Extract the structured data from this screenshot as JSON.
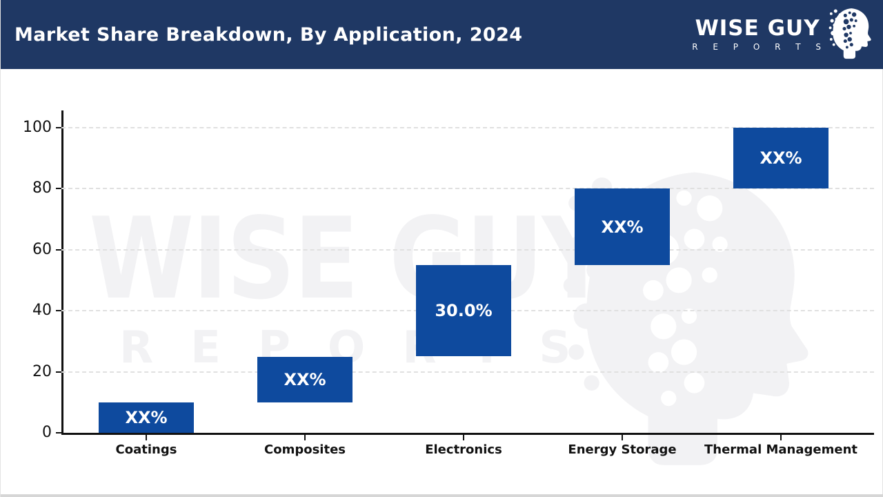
{
  "header": {
    "title": "Market Share Breakdown, By Application, 2024",
    "logo": {
      "line1": "WISE GUY",
      "line2": "R E P O R T S"
    }
  },
  "watermark": {
    "line1": "WISE GUY",
    "line2": "REPORTS"
  },
  "colors": {
    "header_bg": "#1f3864",
    "bar": "#0e4a9e",
    "grid": "#e0e0e0",
    "axis": "#111111",
    "watermark": "#f2f2f4",
    "bottom_strip": "#d6d6d6",
    "bar_label": "#ffffff"
  },
  "chart_data": {
    "type": "bar",
    "subtype": "floating-waterfall",
    "title": "Market Share Breakdown, By Application, 2024",
    "xlabel": "",
    "ylabel": "",
    "categories": [
      "Coatings",
      "Composites",
      "Electronics",
      "Energy Storage",
      "Thermal Management"
    ],
    "bars": [
      {
        "category": "Coatings",
        "start": 0,
        "end": 10,
        "label": "XX%"
      },
      {
        "category": "Composites",
        "start": 10,
        "end": 25,
        "label": "XX%"
      },
      {
        "category": "Electronics",
        "start": 25,
        "end": 55,
        "label": "30.0%"
      },
      {
        "category": "Energy Storage",
        "start": 55,
        "end": 80,
        "label": "XX%"
      },
      {
        "category": "Thermal Management",
        "start": 80,
        "end": 100,
        "label": "XX%"
      }
    ],
    "yticks": [
      0,
      20,
      40,
      60,
      80,
      100
    ],
    "ylim": [
      0,
      105
    ],
    "grid": "horizontal-dashed",
    "legend": "none"
  }
}
